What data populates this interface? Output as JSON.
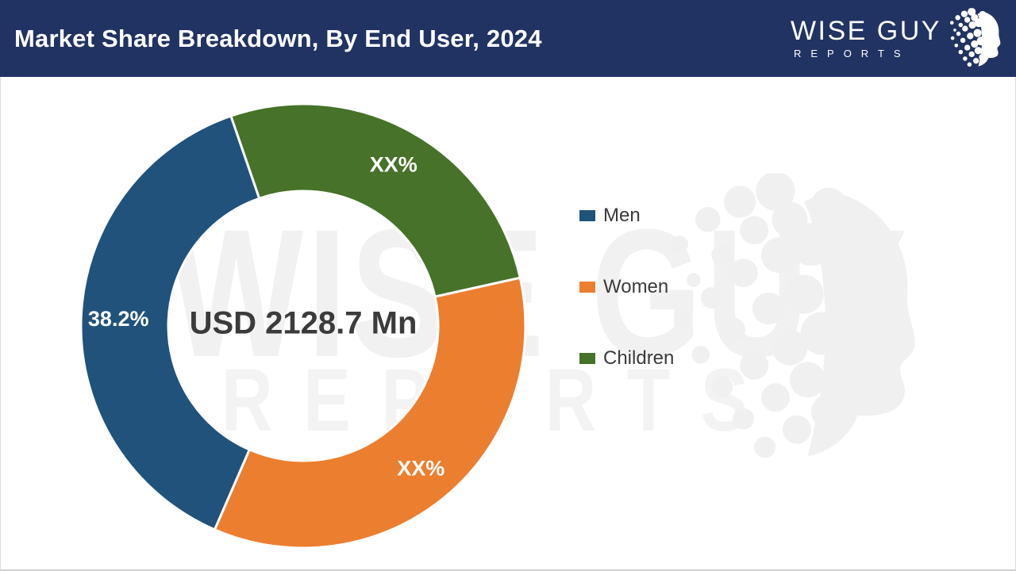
{
  "header": {
    "title": "Market Share Breakdown, By End User, 2024",
    "logo": {
      "name": "WISE GUY",
      "tagline": "REPORTS"
    }
  },
  "watermark": {
    "line1": "WISE GUY",
    "line2": "REPORTS"
  },
  "chart_data": {
    "type": "pie",
    "subtype": "donut",
    "title": "Market Share Breakdown, By End User, 2024",
    "center_label": "USD 2128.7 Mn",
    "start_angle_deg": -19,
    "segments": [
      {
        "name": "Children",
        "value": 26.8,
        "label": "XX%",
        "color": "#477229"
      },
      {
        "name": "Women",
        "value": 35.0,
        "label": "XX%",
        "color": "#EC7E30"
      },
      {
        "name": "Men",
        "value": 38.2,
        "label": "38.2%",
        "color": "#20527C"
      }
    ],
    "legend": [
      {
        "label": "Men",
        "color": "#20527C"
      },
      {
        "label": "Women",
        "color": "#EC7E30"
      },
      {
        "label": "Children",
        "color": "#477229"
      }
    ],
    "legend_position": "right"
  },
  "colors": {
    "header_bg": "#213363",
    "text_dark": "#3b3b3b",
    "watermark": "#f1f1f1",
    "border": "#dcdcdc"
  }
}
